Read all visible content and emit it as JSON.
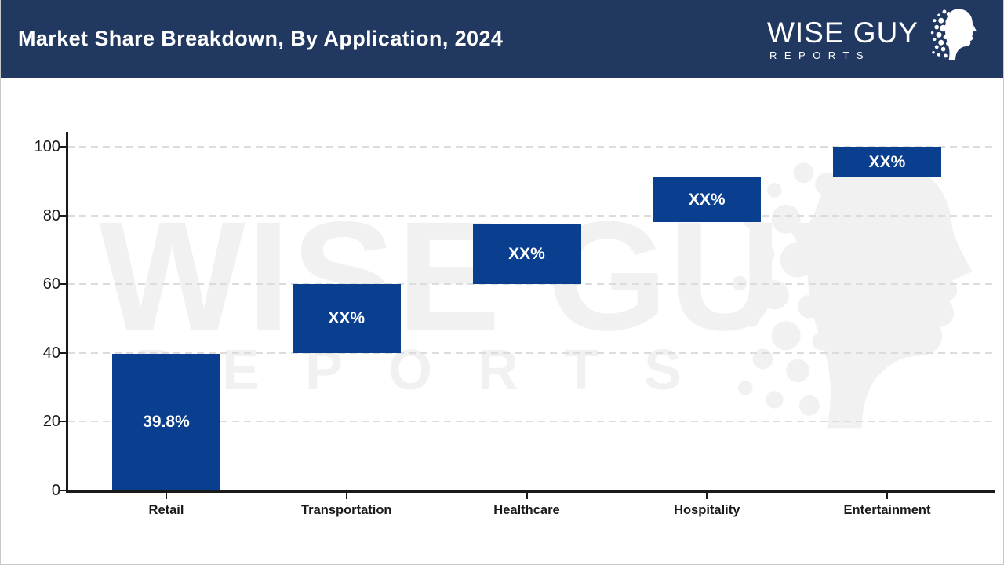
{
  "header": {
    "title": "Market Share Breakdown, By Application, 2024",
    "logo": {
      "line1": "WISE GUY",
      "line2": "REPORTS",
      "face_icon": "dotted-head-profile"
    }
  },
  "watermark": {
    "line1": "WISE GUY",
    "line2": "REPORTS",
    "face_icon": "dotted-head-profile"
  },
  "colors": {
    "header_bg": "#213860",
    "header_text": "#ffffff",
    "bar": "#0a3f90",
    "bar_label": "#ffffff",
    "axis": "#1a1a1a",
    "tick_label": "#1a1a1a",
    "grid": "#dcdcdc",
    "watermark": "#f1f1f1",
    "frame_border": "#c9c9c9"
  },
  "chart_data": {
    "type": "bar",
    "subtype": "floating-waterfall",
    "title": "Market Share Breakdown, By Application, 2024",
    "categories": [
      "Retail",
      "Transportation",
      "Healthcare",
      "Hospitality",
      "Entertainment"
    ],
    "segments": [
      {
        "category": "Retail",
        "start": 0,
        "end": 39.8,
        "label": "39.8%"
      },
      {
        "category": "Transportation",
        "start": 40,
        "end": 60,
        "label": "XX%"
      },
      {
        "category": "Healthcare",
        "start": 60,
        "end": 77.5,
        "label": "XX%"
      },
      {
        "category": "Hospitality",
        "start": 78,
        "end": 91,
        "label": "XX%"
      },
      {
        "category": "Entertainment",
        "start": 91,
        "end": 100,
        "label": "XX%"
      }
    ],
    "xlabel": "",
    "ylabel": "",
    "yticks": [
      0,
      20,
      40,
      60,
      80,
      100
    ],
    "ylim": [
      0,
      104
    ],
    "grid": "horizontal-dashed",
    "legend": "none"
  }
}
